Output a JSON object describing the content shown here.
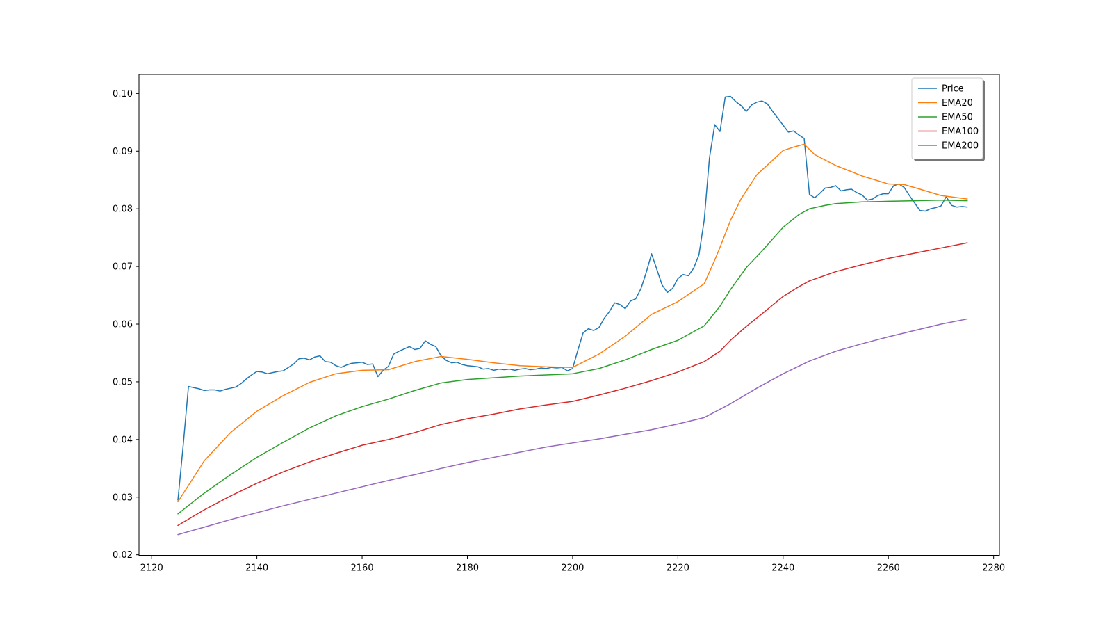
{
  "figure": {
    "background": "#ffffff",
    "title": ""
  },
  "chart_data": {
    "type": "line",
    "title": "",
    "xlabel": "",
    "ylabel": "",
    "grid": false,
    "xlim": [
      2117.6,
      2281.1
    ],
    "ylim": [
      0.0199,
      0.1033
    ],
    "x_ticks": [
      2120,
      2140,
      2160,
      2180,
      2200,
      2220,
      2240,
      2260,
      2280
    ],
    "y_ticks": [
      0.02,
      0.03,
      0.04,
      0.05,
      0.06,
      0.07,
      0.08,
      0.09,
      0.1
    ],
    "legend": {
      "position": "upper right",
      "frame": true,
      "shadow": true
    },
    "series": [
      {
        "name": "Price",
        "color": "#1f77b4",
        "x_start": 2125,
        "x_step": 1,
        "values": [
          0.0295,
          0.039,
          0.0492,
          0.049,
          0.0488,
          0.0485,
          0.0486,
          0.0486,
          0.0484,
          0.0487,
          0.0489,
          0.0491,
          0.0497,
          0.0505,
          0.0512,
          0.0518,
          0.0517,
          0.0514,
          0.0516,
          0.0518,
          0.0519,
          0.0525,
          0.0531,
          0.054,
          0.0541,
          0.0538,
          0.0543,
          0.0545,
          0.0535,
          0.0534,
          0.0528,
          0.0525,
          0.0529,
          0.0532,
          0.0533,
          0.0534,
          0.053,
          0.0531,
          0.0509,
          0.052,
          0.0527,
          0.0548,
          0.0553,
          0.0557,
          0.0561,
          0.0556,
          0.0558,
          0.0571,
          0.0565,
          0.0561,
          0.0545,
          0.0537,
          0.0533,
          0.0534,
          0.053,
          0.0528,
          0.0527,
          0.0526,
          0.0522,
          0.0523,
          0.052,
          0.0522,
          0.0521,
          0.0522,
          0.052,
          0.0522,
          0.0523,
          0.0521,
          0.0522,
          0.0524,
          0.0523,
          0.0525,
          0.0524,
          0.0525,
          0.0519,
          0.0523,
          0.0555,
          0.0585,
          0.0592,
          0.0589,
          0.0594,
          0.061,
          0.0622,
          0.0637,
          0.0634,
          0.0627,
          0.064,
          0.0644,
          0.0662,
          0.069,
          0.0722,
          0.0695,
          0.0668,
          0.0655,
          0.0662,
          0.0679,
          0.0686,
          0.0684,
          0.0697,
          0.072,
          0.078,
          0.0888,
          0.0946,
          0.0934,
          0.0994,
          0.0995,
          0.0986,
          0.0979,
          0.0969,
          0.098,
          0.0985,
          0.0987,
          0.0982,
          0.0969,
          0.0957,
          0.0945,
          0.0933,
          0.0935,
          0.0928,
          0.0922,
          0.0825,
          0.0819,
          0.0827,
          0.0836,
          0.0837,
          0.084,
          0.0831,
          0.0833,
          0.0834,
          0.0828,
          0.0824,
          0.0815,
          0.0817,
          0.0823,
          0.0826,
          0.0826,
          0.084,
          0.0843,
          0.0837,
          0.0823,
          0.081,
          0.0797,
          0.0796,
          0.08,
          0.0802,
          0.0805,
          0.0821,
          0.0806,
          0.0803,
          0.0804,
          0.0803
        ]
      },
      {
        "name": "EMA20",
        "color": "#ff7f0e",
        "points": [
          [
            2125,
            0.0292
          ],
          [
            2130,
            0.0363
          ],
          [
            2135,
            0.0412
          ],
          [
            2140,
            0.0449
          ],
          [
            2145,
            0.0476
          ],
          [
            2150,
            0.0499
          ],
          [
            2155,
            0.0514
          ],
          [
            2160,
            0.052
          ],
          [
            2165,
            0.0521
          ],
          [
            2170,
            0.0535
          ],
          [
            2175,
            0.0544
          ],
          [
            2180,
            0.0539
          ],
          [
            2185,
            0.0533
          ],
          [
            2190,
            0.0528
          ],
          [
            2195,
            0.0526
          ],
          [
            2200,
            0.0525
          ],
          [
            2205,
            0.0548
          ],
          [
            2210,
            0.0579
          ],
          [
            2215,
            0.0617
          ],
          [
            2220,
            0.0639
          ],
          [
            2225,
            0.067
          ],
          [
            2227,
            0.0711
          ],
          [
            2228,
            0.0733
          ],
          [
            2230,
            0.078
          ],
          [
            2232,
            0.0817
          ],
          [
            2235,
            0.0859
          ],
          [
            2240,
            0.0901
          ],
          [
            2242,
            0.0907
          ],
          [
            2244,
            0.0912
          ],
          [
            2246,
            0.0894
          ],
          [
            2250,
            0.0875
          ],
          [
            2255,
            0.0857
          ],
          [
            2260,
            0.0843
          ],
          [
            2263,
            0.0842
          ],
          [
            2266,
            0.0834
          ],
          [
            2270,
            0.0823
          ],
          [
            2275,
            0.0817
          ]
        ]
      },
      {
        "name": "EMA50",
        "color": "#2ca02c",
        "points": [
          [
            2125,
            0.0271
          ],
          [
            2130,
            0.0307
          ],
          [
            2135,
            0.0339
          ],
          [
            2140,
            0.0369
          ],
          [
            2145,
            0.0395
          ],
          [
            2150,
            0.042
          ],
          [
            2155,
            0.0441
          ],
          [
            2160,
            0.0457
          ],
          [
            2165,
            0.047
          ],
          [
            2170,
            0.0485
          ],
          [
            2175,
            0.0498
          ],
          [
            2180,
            0.0504
          ],
          [
            2185,
            0.0507
          ],
          [
            2190,
            0.051
          ],
          [
            2195,
            0.0512
          ],
          [
            2200,
            0.0514
          ],
          [
            2205,
            0.0523
          ],
          [
            2210,
            0.0538
          ],
          [
            2215,
            0.0556
          ],
          [
            2220,
            0.0572
          ],
          [
            2225,
            0.0597
          ],
          [
            2228,
            0.0631
          ],
          [
            2230,
            0.066
          ],
          [
            2233,
            0.0698
          ],
          [
            2236,
            0.0727
          ],
          [
            2240,
            0.0768
          ],
          [
            2243,
            0.079
          ],
          [
            2245,
            0.08
          ],
          [
            2248,
            0.0806
          ],
          [
            2250,
            0.0809
          ],
          [
            2255,
            0.0812
          ],
          [
            2260,
            0.0813
          ],
          [
            2265,
            0.0814
          ],
          [
            2270,
            0.0815
          ],
          [
            2275,
            0.0814
          ]
        ]
      },
      {
        "name": "EMA100",
        "color": "#d62728",
        "points": [
          [
            2125,
            0.0251
          ],
          [
            2130,
            0.0278
          ],
          [
            2135,
            0.0302
          ],
          [
            2140,
            0.0324
          ],
          [
            2145,
            0.0344
          ],
          [
            2150,
            0.0361
          ],
          [
            2155,
            0.0376
          ],
          [
            2160,
            0.039
          ],
          [
            2165,
            0.04
          ],
          [
            2170,
            0.0412
          ],
          [
            2175,
            0.0426
          ],
          [
            2180,
            0.0436
          ],
          [
            2185,
            0.0444
          ],
          [
            2190,
            0.0453
          ],
          [
            2195,
            0.046
          ],
          [
            2200,
            0.0466
          ],
          [
            2205,
            0.0477
          ],
          [
            2210,
            0.0489
          ],
          [
            2215,
            0.0502
          ],
          [
            2220,
            0.0517
          ],
          [
            2225,
            0.0535
          ],
          [
            2228,
            0.0553
          ],
          [
            2230,
            0.0572
          ],
          [
            2233,
            0.0596
          ],
          [
            2236,
            0.0618
          ],
          [
            2240,
            0.0648
          ],
          [
            2243,
            0.0665
          ],
          [
            2245,
            0.0675
          ],
          [
            2250,
            0.0691
          ],
          [
            2255,
            0.0703
          ],
          [
            2260,
            0.0714
          ],
          [
            2265,
            0.0723
          ],
          [
            2270,
            0.0732
          ],
          [
            2275,
            0.0741
          ]
        ]
      },
      {
        "name": "EMA200",
        "color": "#9467bd",
        "points": [
          [
            2125,
            0.0235
          ],
          [
            2130,
            0.0248
          ],
          [
            2135,
            0.0261
          ],
          [
            2140,
            0.0273
          ],
          [
            2145,
            0.0285
          ],
          [
            2150,
            0.0296
          ],
          [
            2155,
            0.0307
          ],
          [
            2160,
            0.0318
          ],
          [
            2165,
            0.0329
          ],
          [
            2170,
            0.0339
          ],
          [
            2175,
            0.035
          ],
          [
            2180,
            0.036
          ],
          [
            2185,
            0.0369
          ],
          [
            2190,
            0.0378
          ],
          [
            2195,
            0.0387
          ],
          [
            2200,
            0.0394
          ],
          [
            2205,
            0.0401
          ],
          [
            2210,
            0.0409
          ],
          [
            2215,
            0.0417
          ],
          [
            2220,
            0.0427
          ],
          [
            2225,
            0.0438
          ],
          [
            2230,
            0.0462
          ],
          [
            2235,
            0.0489
          ],
          [
            2240,
            0.0514
          ],
          [
            2245,
            0.0536
          ],
          [
            2250,
            0.0553
          ],
          [
            2255,
            0.0566
          ],
          [
            2260,
            0.0578
          ],
          [
            2265,
            0.0589
          ],
          [
            2270,
            0.06
          ],
          [
            2275,
            0.0609
          ]
        ]
      }
    ]
  }
}
